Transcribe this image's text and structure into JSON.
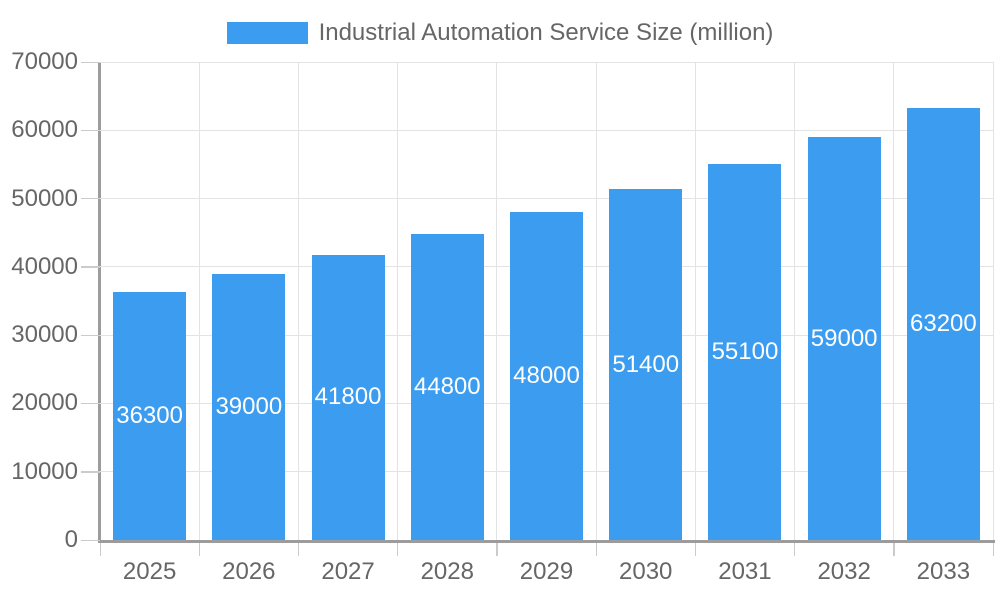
{
  "legend": {
    "label": "Industrial Automation Service Size (million)"
  },
  "colors": {
    "bar": "#3B9CF0",
    "gridline": "#E3E3E3",
    "axis": "#9C9C9C",
    "tick": "#CBCBCB",
    "text": "#666666",
    "value_label": "#FFFFFF",
    "background": "#FFFFFF"
  },
  "chart_data": {
    "type": "bar",
    "title": "Industrial Automation Service Size (million)",
    "series_name": "Industrial Automation Service Size (million)",
    "categories": [
      "2025",
      "2026",
      "2027",
      "2028",
      "2029",
      "2030",
      "2031",
      "2032",
      "2033"
    ],
    "values": [
      36300,
      39000,
      41800,
      44800,
      48000,
      51400,
      55100,
      59000,
      63200
    ],
    "xlabel": "",
    "ylabel": "",
    "ylim": [
      0,
      70000
    ],
    "yticks": [
      0,
      10000,
      20000,
      30000,
      40000,
      50000,
      60000,
      70000
    ],
    "grid": true,
    "legend_position": "top-center",
    "value_label_position": "inside-center"
  }
}
